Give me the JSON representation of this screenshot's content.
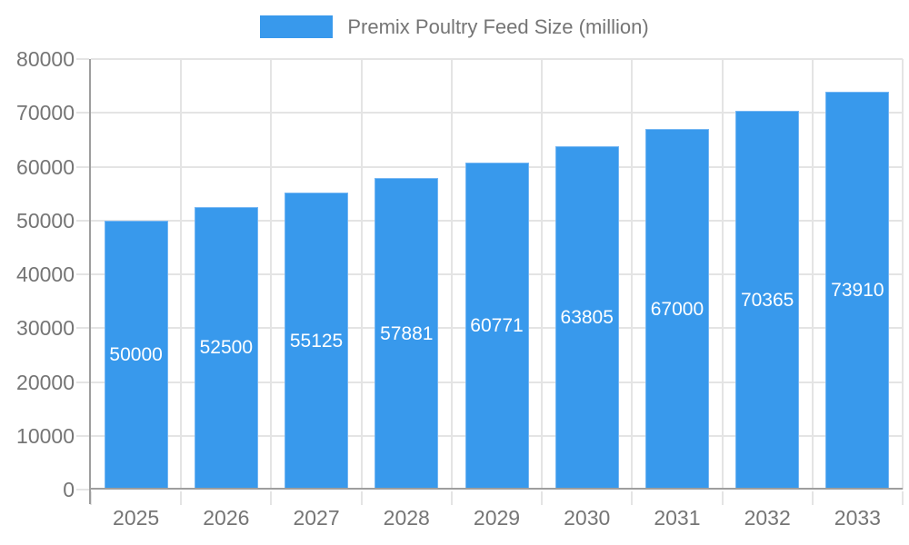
{
  "chart_data": {
    "type": "bar",
    "title": "Premix Poultry Feed Size (million)",
    "categories": [
      "2025",
      "2026",
      "2027",
      "2028",
      "2029",
      "2030",
      "2031",
      "2032",
      "2033"
    ],
    "values": [
      50000,
      52500,
      55125,
      57881,
      60771,
      63805,
      67000,
      70365,
      73910
    ],
    "xlabel": "",
    "ylabel": "",
    "ylim": [
      0,
      80000
    ],
    "ytick_step": 10000,
    "y_tick_labels": [
      "0",
      "10000",
      "20000",
      "30000",
      "40000",
      "50000",
      "60000",
      "70000",
      "80000"
    ],
    "bar_value_labels": [
      "50000",
      "52500",
      "55125",
      "57881",
      "60771",
      "63805",
      "67000",
      "70365",
      "73910"
    ],
    "grid": true,
    "legend_position": "top-center",
    "bar_label_position": "center-inside"
  },
  "colors": {
    "bar": "#3899EC",
    "bar_border": "#74B6F3",
    "bar_label": "#FFFFFF",
    "axis": "#9E9E9E",
    "grid": "#E4E4E4",
    "text": "#757575",
    "background": "#FFFFFF"
  }
}
